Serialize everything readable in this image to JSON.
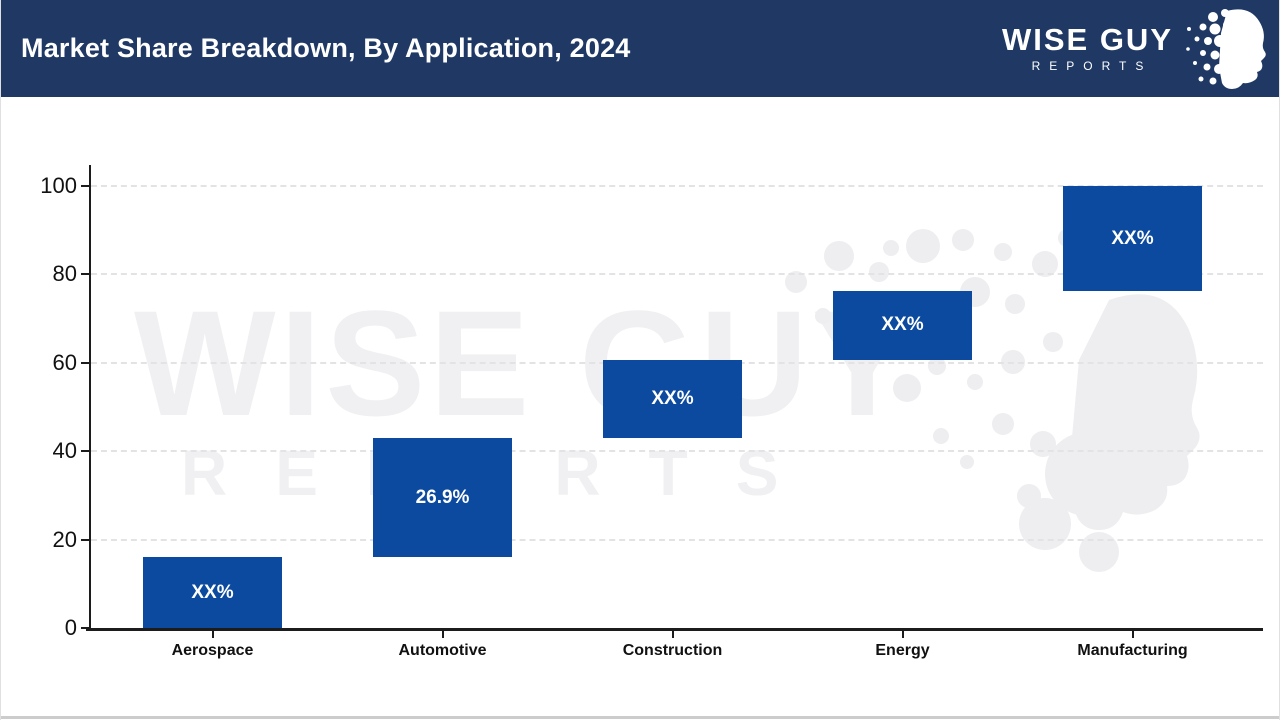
{
  "header": {
    "title": "Market Share Breakdown, By Application, 2024",
    "logo": {
      "line1": "WISE GUY",
      "line2": "REPORTS"
    },
    "bg_color": "#1f3864"
  },
  "watermark": {
    "line1": "WISE GUY",
    "line2": "REPORTS"
  },
  "chart_data": {
    "type": "bar",
    "subtype": "waterfall",
    "title": "Market Share Breakdown, By Application, 2024",
    "categories": [
      "Aerospace",
      "Automotive",
      "Construction",
      "Energy",
      "Manufacturing"
    ],
    "segments": [
      {
        "category": "Aerospace",
        "start": 0,
        "end": 16,
        "label": "XX%"
      },
      {
        "category": "Automotive",
        "start": 16,
        "end": 42.9,
        "label": "26.9%"
      },
      {
        "category": "Construction",
        "start": 42.9,
        "end": 60.6,
        "label": "XX%"
      },
      {
        "category": "Energy",
        "start": 60.7,
        "end": 76.2,
        "label": "XX%"
      },
      {
        "category": "Manufacturing",
        "start": 76.2,
        "end": 100,
        "label": "XX%"
      }
    ],
    "xlabel": "",
    "ylabel": "",
    "ylim": [
      0,
      100
    ],
    "yticks": [
      0,
      20,
      40,
      60,
      80,
      100
    ],
    "grid": "horizontal-dashed",
    "legend": "none",
    "bar_color": "#0b4a9e",
    "label_color": "#ffffff",
    "axis_color": "#1c1c1c"
  }
}
